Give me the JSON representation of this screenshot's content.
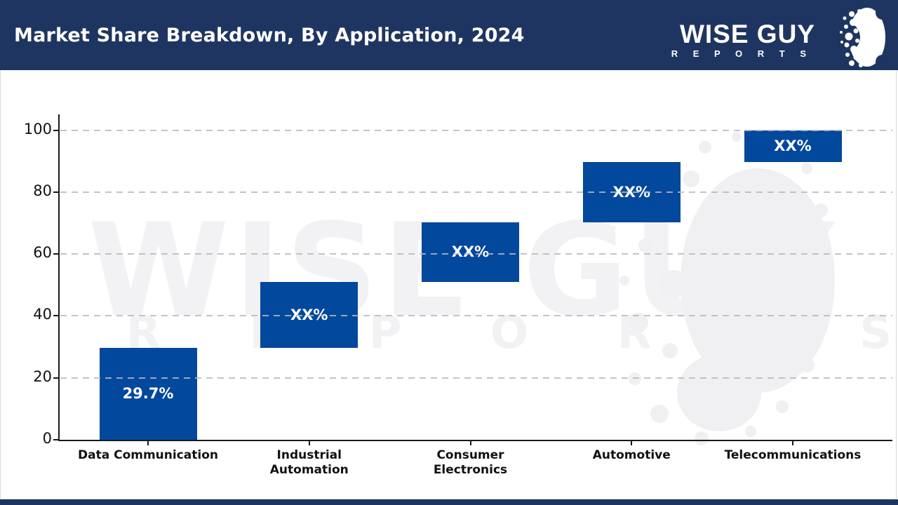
{
  "header": {
    "title": "Market Share Breakdown, By Application, 2024",
    "logo": {
      "line1": "WISE GUY",
      "line2": "R E P O R T S"
    }
  },
  "watermark": {
    "line1": "WISE GUY",
    "line2": "R E P O R T S"
  },
  "footer": {},
  "chart_data": {
    "type": "bar",
    "variant": "waterfall",
    "title": "Market Share Breakdown, By Application, 2024",
    "categories": [
      "Data Communication",
      "Industrial\nAutomation",
      "Consumer\nElectronics",
      "Automotive",
      "Telecommunications"
    ],
    "bars": [
      {
        "category": "Data Communication",
        "start": 0,
        "end": 29.7,
        "label": "29.7%"
      },
      {
        "category": "Industrial Automation",
        "start": 29.7,
        "end": 51.0,
        "label": "XX%"
      },
      {
        "category": "Consumer Electronics",
        "start": 51.0,
        "end": 70.3,
        "label": "XX%"
      },
      {
        "category": "Automotive",
        "start": 70.3,
        "end": 89.6,
        "label": "XX%"
      },
      {
        "category": "Telecommunications",
        "start": 89.6,
        "end": 100,
        "label": "XX%"
      }
    ],
    "ylim": [
      0,
      100
    ],
    "yticks": [
      0,
      20,
      40,
      60,
      80,
      100
    ],
    "grid": "horizontal-dashed-above-bars",
    "legend": "none",
    "bar_color": "#02489d",
    "bar_label_color": "#ffffff",
    "axis_color": "#1a1a1a",
    "grid_color": "#d9d9d9",
    "header_color": "#1f3561",
    "watermark_color": "#f2f2f4"
  }
}
